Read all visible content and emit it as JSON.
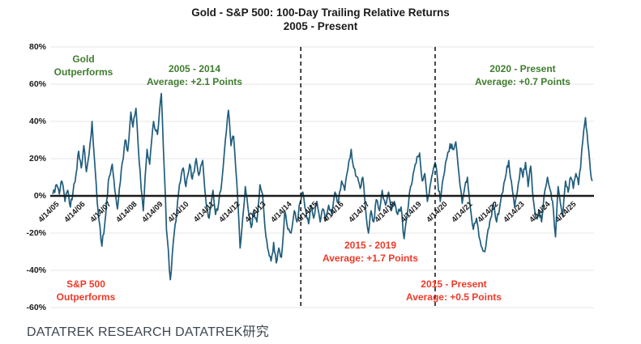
{
  "caption": "DATATREK RESEARCH DATATREK研究",
  "chart_data": {
    "type": "line",
    "title": "Gold - S&P 500: 100-Day Trailing Relative Returns 2005 - Present",
    "title_line1": "Gold - S&P 500: 100-Day Trailing Relative Returns",
    "title_line2": "2005 - Present",
    "grid": true,
    "legend": "none",
    "colors": {
      "line": "#1f5d7c",
      "green_annotation": "#3f7d2e",
      "red_annotation": "#ee3a29",
      "zero_line": "#1a1a1a",
      "gridline": "#e4e4e4"
    },
    "x_axis": {
      "xlim": [
        2005.1,
        2026.15
      ],
      "tick_years": [
        2005.29,
        2006.29,
        2007.29,
        2008.29,
        2009.29,
        2010.29,
        2011.29,
        2012.29,
        2013.29,
        2014.29,
        2015.29,
        2016.29,
        2017.29,
        2018.29,
        2019.29,
        2020.29,
        2021.29,
        2022.29,
        2023.29,
        2024.29,
        2025.29
      ],
      "tick_labels": [
        "4/14/05",
        "4/14/06",
        "4/14/07",
        "4/14/08",
        "4/14/09",
        "4/14/10",
        "4/14/11",
        "4/14/12",
        "4/14/13",
        "4/14/14",
        "4/14/15",
        "4/14/16",
        "4/14/17",
        "4/14/18",
        "4/14/19",
        "4/14/20",
        "4/14/21",
        "4/14/22",
        "4/14/23",
        "4/14/24",
        "4/14/25"
      ]
    },
    "y_axis": {
      "ylim": [
        -60,
        80
      ],
      "tick_values": [
        80,
        60,
        40,
        20,
        0,
        -20,
        -40,
        -60
      ],
      "tick_labels": [
        "80%",
        "60%",
        "40%",
        "20%",
        "0%",
        "-20%",
        "-40%",
        "-60%"
      ]
    },
    "dashed_vlines": [
      2014.8,
      2020.0
    ],
    "annotations": [
      {
        "id": "gold-outperforms",
        "line1": "Gold",
        "line2": "Outperforms",
        "color": "green"
      },
      {
        "id": "period-2005-2014",
        "line1": "2005 - 2014",
        "line2": "Average: +2.1 Points",
        "color": "green"
      },
      {
        "id": "period-2020-present",
        "line1": "2020 - Present",
        "line2": "Average: +0.7 Points",
        "color": "green"
      },
      {
        "id": "period-2015-2019",
        "line1": "2015 - 2019",
        "line2": "Average: +1.7 Points",
        "color": "red"
      },
      {
        "id": "sp500-outperforms",
        "line1": "S&P 500",
        "line2": "Outperforms",
        "color": "red"
      },
      {
        "id": "period-2015-present",
        "line1": "2015 - Present",
        "line2": "Average: +0.5 Points",
        "color": "red"
      }
    ],
    "series": [
      {
        "name": "Gold minus S&P 500 trailing 100-day relative return (%)",
        "points": [
          [
            2005.2,
            1
          ],
          [
            2005.35,
            6
          ],
          [
            2005.45,
            1
          ],
          [
            2005.55,
            8
          ],
          [
            2005.67,
            -3
          ],
          [
            2005.78,
            3
          ],
          [
            2005.88,
            -6
          ],
          [
            2005.98,
            2
          ],
          [
            2006.1,
            12
          ],
          [
            2006.2,
            24
          ],
          [
            2006.3,
            15
          ],
          [
            2006.4,
            27
          ],
          [
            2006.5,
            13
          ],
          [
            2006.6,
            22
          ],
          [
            2006.72,
            40
          ],
          [
            2006.85,
            12
          ],
          [
            2006.95,
            -8
          ],
          [
            2007.1,
            -27
          ],
          [
            2007.25,
            -10
          ],
          [
            2007.35,
            8
          ],
          [
            2007.5,
            17
          ],
          [
            2007.6,
            3
          ],
          [
            2007.7,
            -7
          ],
          [
            2007.85,
            14
          ],
          [
            2008.0,
            30
          ],
          [
            2008.1,
            24
          ],
          [
            2008.22,
            45
          ],
          [
            2008.3,
            37
          ],
          [
            2008.42,
            47
          ],
          [
            2008.5,
            28
          ],
          [
            2008.62,
            4
          ],
          [
            2008.7,
            -8
          ],
          [
            2008.85,
            25
          ],
          [
            2008.95,
            17
          ],
          [
            2009.1,
            40
          ],
          [
            2009.25,
            33
          ],
          [
            2009.4,
            55
          ],
          [
            2009.52,
            12
          ],
          [
            2009.6,
            -18
          ],
          [
            2009.75,
            -45
          ],
          [
            2009.9,
            -20
          ],
          [
            2010.0,
            -8
          ],
          [
            2010.1,
            6
          ],
          [
            2010.25,
            15
          ],
          [
            2010.35,
            5
          ],
          [
            2010.5,
            17
          ],
          [
            2010.6,
            9
          ],
          [
            2010.75,
            20
          ],
          [
            2010.85,
            11
          ],
          [
            2011.0,
            19
          ],
          [
            2011.15,
            -6
          ],
          [
            2011.25,
            -12
          ],
          [
            2011.4,
            3
          ],
          [
            2011.5,
            -10
          ],
          [
            2011.62,
            -4
          ],
          [
            2011.75,
            9
          ],
          [
            2011.88,
            30
          ],
          [
            2012.0,
            46
          ],
          [
            2012.1,
            27
          ],
          [
            2012.2,
            32
          ],
          [
            2012.32,
            8
          ],
          [
            2012.45,
            -28
          ],
          [
            2012.55,
            -12
          ],
          [
            2012.65,
            5
          ],
          [
            2012.75,
            -6
          ],
          [
            2012.88,
            -17
          ],
          [
            2012.98,
            -8
          ],
          [
            2013.1,
            -14
          ],
          [
            2013.22,
            6
          ],
          [
            2013.32,
            1
          ],
          [
            2013.45,
            -22
          ],
          [
            2013.55,
            -30
          ],
          [
            2013.65,
            -35
          ],
          [
            2013.75,
            -25
          ],
          [
            2013.85,
            -36
          ],
          [
            2013.95,
            -28
          ],
          [
            2014.05,
            -33
          ],
          [
            2014.18,
            -8
          ],
          [
            2014.3,
            -18
          ],
          [
            2014.42,
            -20
          ],
          [
            2014.55,
            -8
          ],
          [
            2014.65,
            -14
          ],
          [
            2014.78,
            -3
          ],
          [
            2014.88,
            2
          ],
          [
            2015.0,
            -8
          ],
          [
            2015.1,
            -15
          ],
          [
            2015.2,
            -5
          ],
          [
            2015.3,
            -12
          ],
          [
            2015.42,
            -3
          ],
          [
            2015.55,
            -14
          ],
          [
            2015.65,
            -7
          ],
          [
            2015.75,
            -13
          ],
          [
            2015.88,
            -5
          ],
          [
            2016.0,
            -10
          ],
          [
            2016.12,
            2
          ],
          [
            2016.25,
            -4
          ],
          [
            2016.38,
            8
          ],
          [
            2016.5,
            3
          ],
          [
            2016.62,
            14
          ],
          [
            2016.75,
            25
          ],
          [
            2016.85,
            15
          ],
          [
            2017.0,
            10
          ],
          [
            2017.1,
            4
          ],
          [
            2017.2,
            10
          ],
          [
            2017.3,
            -6
          ],
          [
            2017.42,
            -20
          ],
          [
            2017.52,
            -8
          ],
          [
            2017.62,
            -14
          ],
          [
            2017.72,
            -2
          ],
          [
            2017.85,
            -8
          ],
          [
            2017.95,
            3
          ],
          [
            2018.08,
            -5
          ],
          [
            2018.2,
            2
          ],
          [
            2018.3,
            -8
          ],
          [
            2018.42,
            -3
          ],
          [
            2018.55,
            -10
          ],
          [
            2018.68,
            -6
          ],
          [
            2018.8,
            -23
          ],
          [
            2018.92,
            -10
          ],
          [
            2019.05,
            5
          ],
          [
            2019.15,
            12
          ],
          [
            2019.3,
            21
          ],
          [
            2019.4,
            23
          ],
          [
            2019.5,
            8
          ],
          [
            2019.6,
            12
          ],
          [
            2019.7,
            -3
          ],
          [
            2019.8,
            5
          ],
          [
            2019.9,
            12
          ],
          [
            2020.0,
            18
          ],
          [
            2020.1,
            8
          ],
          [
            2020.2,
            -3
          ],
          [
            2020.32,
            10
          ],
          [
            2020.45,
            20
          ],
          [
            2020.58,
            28
          ],
          [
            2020.68,
            25
          ],
          [
            2020.8,
            29
          ],
          [
            2020.92,
            12
          ],
          [
            2021.05,
            -4
          ],
          [
            2021.15,
            5
          ],
          [
            2021.25,
            10
          ],
          [
            2021.35,
            -5
          ],
          [
            2021.48,
            -18
          ],
          [
            2021.6,
            -12
          ],
          [
            2021.7,
            -22
          ],
          [
            2021.82,
            -28
          ],
          [
            2021.92,
            -30
          ],
          [
            2022.05,
            -18
          ],
          [
            2022.15,
            -12
          ],
          [
            2022.25,
            -4
          ],
          [
            2022.38,
            -14
          ],
          [
            2022.5,
            -6
          ],
          [
            2022.62,
            2
          ],
          [
            2022.75,
            12
          ],
          [
            2022.85,
            19
          ],
          [
            2022.95,
            8
          ],
          [
            2023.08,
            -6
          ],
          [
            2023.18,
            2
          ],
          [
            2023.3,
            15
          ],
          [
            2023.4,
            10
          ],
          [
            2023.5,
            18
          ],
          [
            2023.6,
            5
          ],
          [
            2023.7,
            16
          ],
          [
            2023.8,
            -2
          ],
          [
            2023.92,
            -12
          ],
          [
            2024.02,
            -8
          ],
          [
            2024.12,
            -14
          ],
          [
            2024.25,
            3
          ],
          [
            2024.35,
            10
          ],
          [
            2024.48,
            2
          ],
          [
            2024.58,
            -8
          ],
          [
            2024.66,
            -22
          ],
          [
            2024.76,
            5
          ],
          [
            2024.85,
            -4
          ],
          [
            2024.94,
            -11
          ],
          [
            2025.05,
            8
          ],
          [
            2025.15,
            2
          ],
          [
            2025.25,
            10
          ],
          [
            2025.35,
            4
          ],
          [
            2025.45,
            12
          ],
          [
            2025.55,
            6
          ],
          [
            2025.63,
            15
          ],
          [
            2025.72,
            30
          ],
          [
            2025.82,
            42
          ],
          [
            2025.88,
            34
          ],
          [
            2025.95,
            24
          ],
          [
            2026.02,
            12
          ],
          [
            2026.08,
            8
          ]
        ]
      }
    ]
  }
}
